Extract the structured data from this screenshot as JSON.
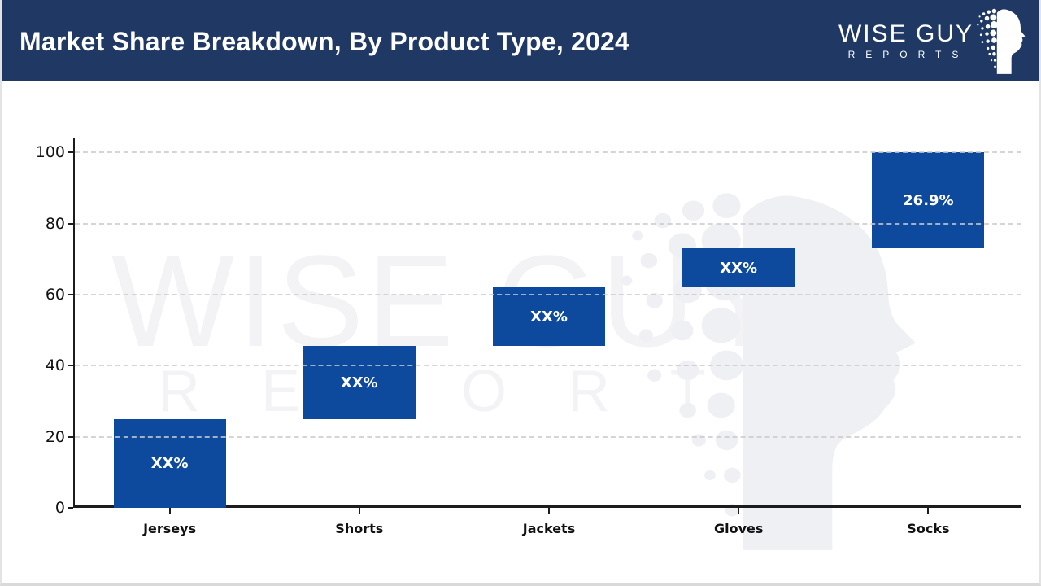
{
  "header": {
    "title": "Market Share Breakdown, By Product Type, 2024",
    "logo": {
      "wordmark": "WISE GUY",
      "sub": "REPORTS"
    },
    "bg_color": "#1f3864"
  },
  "watermark": {
    "wordmark": "WISE GUY",
    "sub": "REPORTS"
  },
  "chart_data": {
    "type": "bar",
    "variant": "floating-waterfall-segments",
    "title": "Market Share Breakdown, By Product Type, 2024",
    "categories": [
      "Jerseys",
      "Shorts",
      "Jackets",
      "Gloves",
      "Socks"
    ],
    "segments": [
      {
        "category": "Jerseys",
        "start": 0,
        "end": 25,
        "label": "XX%"
      },
      {
        "category": "Shorts",
        "start": 25,
        "end": 45.5,
        "label": "XX%"
      },
      {
        "category": "Jackets",
        "start": 45.5,
        "end": 62,
        "label": "XX%"
      },
      {
        "category": "Gloves",
        "start": 62,
        "end": 73.1,
        "label": "XX%"
      },
      {
        "category": "Socks",
        "start": 73.1,
        "end": 100,
        "label": "26.9%"
      }
    ],
    "xlabel": "",
    "ylabel": "",
    "ylim": [
      0,
      100
    ],
    "yticks": [
      0,
      20,
      40,
      60,
      80,
      100
    ],
    "grid": "horizontal-dashed",
    "legend": "none",
    "bar_color": "#0d4a9e",
    "bar_label_color": "#ffffff",
    "axis_color": "#1c1c1c",
    "gridline_color": "#d9d9d9",
    "tick_label_color": "#111111"
  }
}
